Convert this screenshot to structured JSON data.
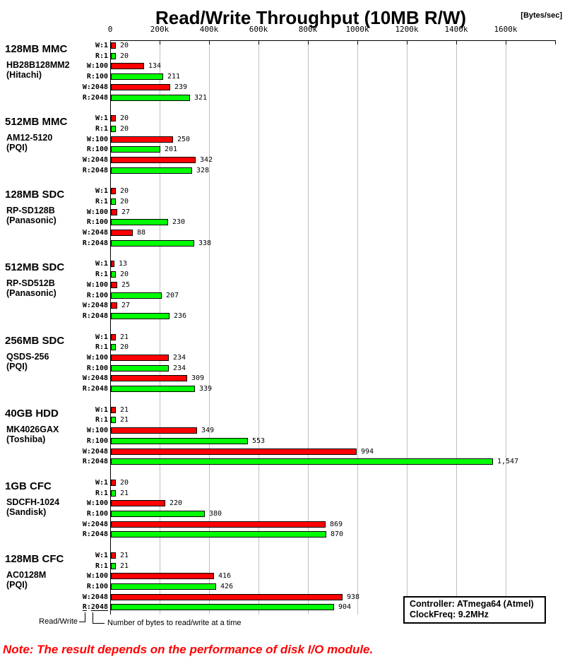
{
  "title": "Read/Write Throughput (10MB R/W)",
  "unit_label": "[Bytes/sec]",
  "chart_data": {
    "type": "bar",
    "orientation": "horizontal",
    "title": "Read/Write Throughput (10MB R/W)",
    "value_unit": "kBytes/sec",
    "xlabel": "[Bytes/sec]",
    "xlim_k": [
      0,
      1800
    ],
    "x_tick_step_k": 200,
    "x_tick_labels": [
      "0",
      "200k",
      "400k",
      "600k",
      "800k",
      "1000k",
      "1200k",
      "1400k",
      "1600k"
    ],
    "grid": true,
    "row_labels": [
      "W:1",
      "R:1",
      "W:100",
      "R:100",
      "W:2048",
      "R:2048"
    ],
    "colors": {
      "write": "#ff0000",
      "read": "#00ff00",
      "bar_border": "#000000",
      "gridline": "#c0c0c0"
    },
    "groups": [
      {
        "name": "128MB MMC",
        "model": "HB28B128MM2",
        "maker": "(Hitachi)",
        "values_k": [
          20,
          20,
          134,
          211,
          239,
          321
        ]
      },
      {
        "name": "512MB MMC",
        "model": "AM12-5120",
        "maker": "(PQI)",
        "values_k": [
          20,
          20,
          250,
          201,
          342,
          328
        ]
      },
      {
        "name": "128MB SDC",
        "model": "RP-SD128B",
        "maker": "(Panasonic)",
        "values_k": [
          20,
          20,
          27,
          230,
          88,
          338
        ]
      },
      {
        "name": "512MB SDC",
        "model": "RP-SD512B",
        "maker": "(Panasonic)",
        "values_k": [
          13,
          20,
          25,
          207,
          27,
          236
        ]
      },
      {
        "name": "256MB SDC",
        "model": "QSDS-256",
        "maker": "(PQI)",
        "values_k": [
          21,
          20,
          234,
          234,
          309,
          339
        ]
      },
      {
        "name": "40GB HDD",
        "model": "MK4026GAX",
        "maker": "(Toshiba)",
        "values_k": [
          21,
          21,
          349,
          553,
          994,
          1547
        ]
      },
      {
        "name": "1GB CFC",
        "model": "SDCFH-1024",
        "maker": "(Sandisk)",
        "values_k": [
          20,
          21,
          220,
          380,
          869,
          870
        ]
      },
      {
        "name": "128MB CFC",
        "model": "AC0128M",
        "maker": "(PQI)",
        "values_k": [
          21,
          21,
          416,
          426,
          938,
          904
        ]
      }
    ]
  },
  "footnotes": {
    "read_write": "Read/Write",
    "bytes_at_a_time": "Number of bytes to read/write at a time"
  },
  "info_box": {
    "line1": "Controller: ATmega64 (Atmel)",
    "line2": "ClockFreq: 9.2MHz"
  },
  "note": "Note: The result depends on the performance of disk I/O module."
}
